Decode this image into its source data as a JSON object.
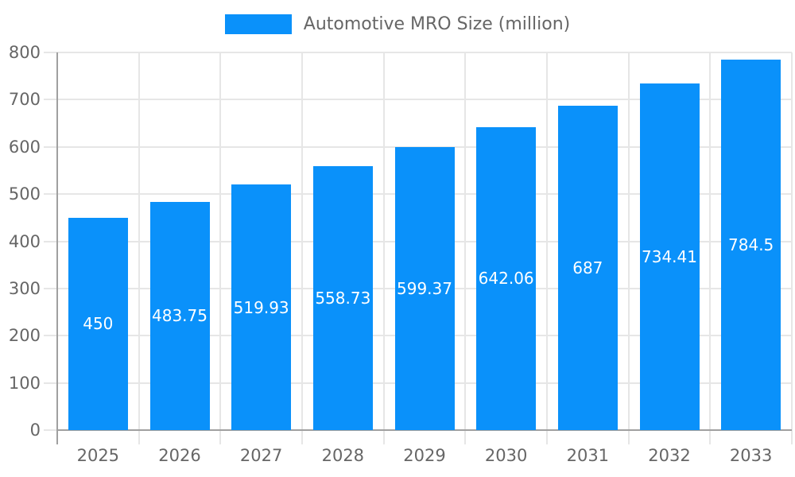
{
  "chart_data": {
    "type": "bar",
    "title": "Automotive MRO Size (million)",
    "legend": {
      "position": "top-center",
      "entries": [
        "Automotive MRO Size (million)"
      ]
    },
    "categories": [
      "2025",
      "2026",
      "2027",
      "2028",
      "2029",
      "2030",
      "2031",
      "2032",
      "2033"
    ],
    "values": [
      450,
      483.75,
      519.93,
      558.73,
      599.37,
      642.06,
      687,
      734.41,
      784.5
    ],
    "value_labels": [
      "450",
      "483.75",
      "519.93",
      "558.73",
      "599.37",
      "642.06",
      "687",
      "734.41",
      "784.5"
    ],
    "xlabel": "",
    "ylabel": "",
    "ylim": [
      0,
      800
    ],
    "ytick_step": 100,
    "ytick_labels": [
      "0",
      "100",
      "200",
      "300",
      "400",
      "500",
      "600",
      "700",
      "800"
    ],
    "grid": "on",
    "grid_vertical": "on",
    "colors": {
      "bar": "#0a91fa",
      "gridline": "#e6e6e6",
      "axis_line": "#a0a0a0",
      "axis_text": "#666666",
      "value_label_text": "#ffffff",
      "background": "#ffffff"
    }
  }
}
